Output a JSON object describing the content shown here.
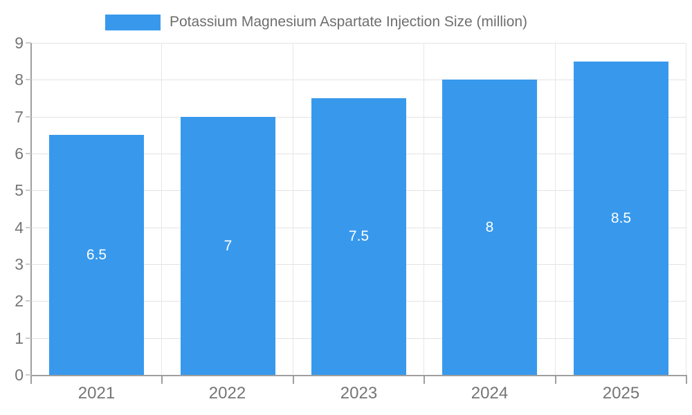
{
  "legend": {
    "label": "Potassium Magnesium Aspartate Injection Size (million)"
  },
  "chart_data": {
    "type": "bar",
    "title": "Potassium Magnesium Aspartate Injection Size (million)",
    "categories": [
      "2021",
      "2022",
      "2023",
      "2024",
      "2025"
    ],
    "values": [
      6.5,
      7,
      7.5,
      8,
      8.5
    ],
    "bar_labels": [
      "6.5",
      "7",
      "7.5",
      "8",
      "8.5"
    ],
    "series": [
      {
        "name": "Potassium Magnesium Aspartate Injection Size (million)",
        "values": [
          6.5,
          7,
          7.5,
          8,
          8.5
        ]
      }
    ],
    "xlabel": "",
    "ylabel": "",
    "ylim": [
      0,
      9
    ],
    "yticks": [
      0,
      1,
      2,
      3,
      4,
      5,
      6,
      7,
      8,
      9
    ],
    "grid": true,
    "legend_position": "top",
    "colors": {
      "bar": "#3899ec",
      "value_label": "#ffffff",
      "axis_text": "#757575",
      "legend_text": "#6e6e6e",
      "axis_line": "#9e9e9e",
      "gridline_h": "#e3e3e3",
      "gridline_v": "#e7e7e7",
      "tick": "#cccccc",
      "background": "#ffffff"
    }
  }
}
